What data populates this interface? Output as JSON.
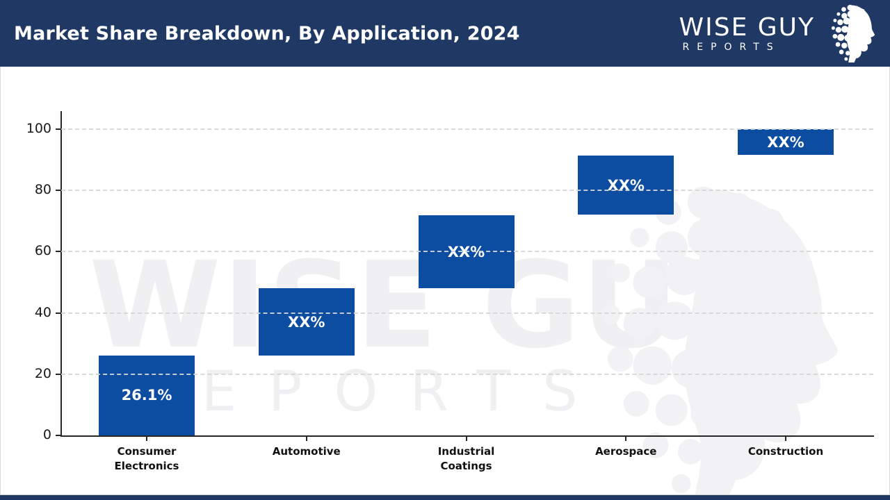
{
  "header": {
    "title": "Market Share Breakdown, By Application, 2024",
    "logo": {
      "line1": "WISE GUY",
      "line2": "REPORTS"
    }
  },
  "watermark": {
    "line1": "WISE GUY",
    "line2": "REPORTS"
  },
  "colors": {
    "header_bg": "#1f3864",
    "bar": "#0c4da2",
    "bar_label": "#ffffff",
    "axis": "#262626",
    "grid": "#d6d6d6",
    "watermark": "#f0f0f2"
  },
  "chart_data": {
    "type": "bar",
    "subtype": "waterfall",
    "title": "Market Share Breakdown, By Application, 2024",
    "categories": [
      "Consumer Electronics",
      "Automotive",
      "Industrial Coatings",
      "Aerospace",
      "Construction"
    ],
    "segments": [
      {
        "category": "Consumer Electronics",
        "start": 0,
        "end": 26.1,
        "label": "26.1%"
      },
      {
        "category": "Automotive",
        "start": 26.1,
        "end": 48,
        "label": "XX%"
      },
      {
        "category": "Industrial Coatings",
        "start": 48,
        "end": 71.8,
        "label": "XX%"
      },
      {
        "category": "Aerospace",
        "start": 72,
        "end": 91.3,
        "label": "XX%"
      },
      {
        "category": "Construction",
        "start": 91.5,
        "end": 100,
        "label": "XX%"
      }
    ],
    "xlabel": "",
    "ylabel": "",
    "ylim": [
      0,
      100
    ],
    "yticks": [
      0,
      20,
      40,
      60,
      80,
      100
    ],
    "grid": "horizontal-dashed",
    "legend": "none"
  }
}
